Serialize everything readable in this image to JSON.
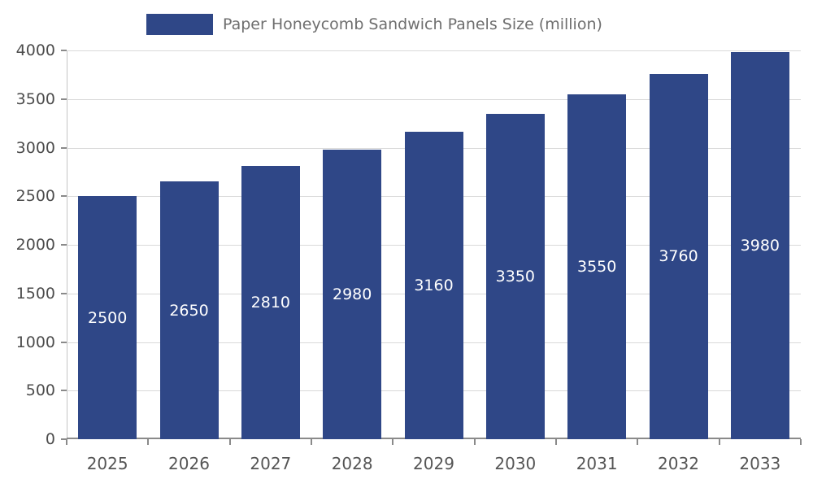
{
  "chart_data": {
    "type": "bar",
    "title": "Paper Honeycomb Sandwich Panels Size (million)",
    "xlabel": "",
    "ylabel": "",
    "categories": [
      "2025",
      "2026",
      "2027",
      "2028",
      "2029",
      "2030",
      "2031",
      "2032",
      "2033"
    ],
    "values": [
      2500,
      2650,
      2810,
      2980,
      3160,
      3350,
      3550,
      3760,
      3980
    ],
    "ylim": [
      0,
      4000
    ],
    "ytick_step": 500,
    "grid": true,
    "legend_position": "top",
    "bar_color": "#2f4787",
    "value_label_color": "#ffffff"
  },
  "legend": {
    "label": "Paper Honeycomb Sandwich Panels Size (million)"
  }
}
